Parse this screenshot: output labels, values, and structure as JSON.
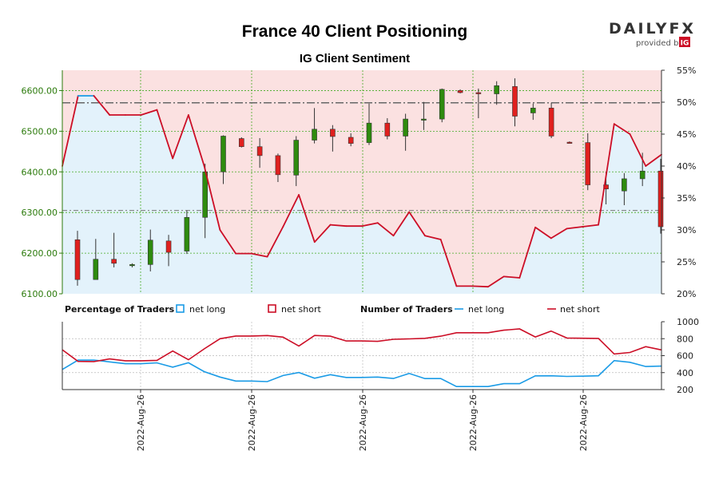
{
  "header": {
    "title": "France 40 Client Positioning",
    "subtitle": "IG Client Sentiment"
  },
  "logo": {
    "brand": "DAILYFX",
    "provided_by": "provided by",
    "ig": "IG"
  },
  "legend": {
    "pct_title": "Percentage of Traders",
    "num_title": "Number of Traders",
    "net_long": "net long",
    "net_short": "net short"
  },
  "colors": {
    "long": "#1a9be6",
    "short": "#cc0e26",
    "bull_candle": "#2e8b0e",
    "bear_candle": "#e0201e",
    "short_zone": "#fbe1e1",
    "long_zone": "#e3f2fb",
    "axis_green": "#2b7a0b",
    "grid_green": "#44aa22"
  },
  "chart_data": [
    {
      "type": "candlestick",
      "title": "France 40 Client Positioning",
      "subtitle": "IG Client Sentiment",
      "y_left": {
        "ylim": [
          6100,
          6650
        ],
        "ticks": [
          "6100.00",
          "6200.00",
          "6300.00",
          "6400.00",
          "6500.00",
          "6600.00"
        ]
      },
      "y_right": {
        "ylim": [
          20,
          55
        ],
        "ticks": [
          "20%",
          "25%",
          "30%",
          "35%",
          "40%",
          "45%",
          "50%",
          "55%"
        ]
      },
      "x_labels": [
        "2022-Aug-26",
        "2022-Aug-26",
        "2022-Aug-26",
        "2022-Aug-26",
        "2022-Aug-26"
      ],
      "reference_levels": {
        "upper_dashed": 6570,
        "lower_dashed": 6305
      },
      "candles": [
        {
          "o": 6233,
          "h": 6255,
          "l": 6120,
          "c": 6135
        },
        {
          "o": 6135,
          "h": 6235,
          "l": 6135,
          "c": 6185
        },
        {
          "o": 6185,
          "h": 6250,
          "l": 6165,
          "c": 6175
        },
        {
          "o": 6170,
          "h": 6175,
          "l": 6165,
          "c": 6172
        },
        {
          "o": 6172,
          "h": 6258,
          "l": 6155,
          "c": 6232
        },
        {
          "o": 6230,
          "h": 6245,
          "l": 6168,
          "c": 6202
        },
        {
          "o": 6205,
          "h": 6305,
          "l": 6198,
          "c": 6288
        },
        {
          "o": 6288,
          "h": 6420,
          "l": 6237,
          "c": 6400
        },
        {
          "o": 6400,
          "h": 6490,
          "l": 6370,
          "c": 6488
        },
        {
          "o": 6482,
          "h": 6485,
          "l": 6460,
          "c": 6462
        },
        {
          "o": 6462,
          "h": 6483,
          "l": 6410,
          "c": 6440
        },
        {
          "o": 6440,
          "h": 6445,
          "l": 6375,
          "c": 6393
        },
        {
          "o": 6392,
          "h": 6488,
          "l": 6365,
          "c": 6478
        },
        {
          "o": 6478,
          "h": 6557,
          "l": 6470,
          "c": 6505
        },
        {
          "o": 6505,
          "h": 6515,
          "l": 6450,
          "c": 6487
        },
        {
          "o": 6485,
          "h": 6495,
          "l": 6463,
          "c": 6470
        },
        {
          "o": 6472,
          "h": 6568,
          "l": 6466,
          "c": 6520
        },
        {
          "o": 6520,
          "h": 6532,
          "l": 6480,
          "c": 6488
        },
        {
          "o": 6488,
          "h": 6543,
          "l": 6452,
          "c": 6530
        },
        {
          "o": 6530,
          "h": 6572,
          "l": 6503,
          "c": 6530
        },
        {
          "o": 6530,
          "h": 6605,
          "l": 6522,
          "c": 6603
        },
        {
          "o": 6600,
          "h": 6603,
          "l": 6593,
          "c": 6595
        },
        {
          "o": 6595,
          "h": 6605,
          "l": 6532,
          "c": 6592
        },
        {
          "o": 6592,
          "h": 6623,
          "l": 6565,
          "c": 6612
        },
        {
          "o": 6610,
          "h": 6630,
          "l": 6512,
          "c": 6537
        },
        {
          "o": 6545,
          "h": 6568,
          "l": 6528,
          "c": 6557
        },
        {
          "o": 6557,
          "h": 6570,
          "l": 6483,
          "c": 6488
        },
        {
          "o": 6473,
          "h": 6475,
          "l": 6470,
          "c": 6472
        },
        {
          "o": 6472,
          "h": 6495,
          "l": 6355,
          "c": 6368
        },
        {
          "o": 6368,
          "h": 6400,
          "l": 6320,
          "c": 6358
        },
        {
          "o": 6353,
          "h": 6397,
          "l": 6318,
          "c": 6383
        },
        {
          "o": 6383,
          "h": 6447,
          "l": 6365,
          "c": 6402
        },
        {
          "o": 6402,
          "h": 6432,
          "l": 6248,
          "c": 6265
        }
      ],
      "net_long_pct": [
        40,
        51,
        51,
        48,
        48,
        48,
        48.8,
        41.2,
        48,
        40,
        30,
        26.3,
        26.3,
        25.8,
        30.5,
        35.5,
        28.1,
        30.8,
        30.6,
        30.6,
        31.1,
        29.1,
        32.8,
        29.1,
        28.5,
        21.2,
        21.2,
        21.1,
        22.7,
        22.5,
        30.4,
        28.7,
        30.2,
        30.5,
        30.8,
        46.6,
        45,
        40,
        41.8
      ]
    },
    {
      "type": "line",
      "title": "Number of Traders",
      "ylim": [
        200,
        1000
      ],
      "y_ticks": [
        "200",
        "400",
        "600",
        "800",
        "1000"
      ],
      "series": [
        {
          "name": "net long",
          "values": [
            437,
            547,
            548,
            527,
            505,
            505,
            515,
            464,
            516,
            412,
            348,
            301,
            301,
            294,
            366,
            401,
            334,
            376,
            343,
            343,
            348,
            331,
            390,
            330,
            330,
            236,
            236,
            236,
            270,
            270,
            362,
            363,
            355,
            358,
            363,
            542,
            522,
            472,
            477
          ]
        },
        {
          "name": "net short",
          "values": [
            670,
            532,
            530,
            561,
            540,
            540,
            544,
            655,
            552,
            680,
            800,
            832,
            832,
            837,
            818,
            714,
            838,
            830,
            773,
            773,
            768,
            793,
            798,
            804,
            830,
            870,
            870,
            870,
            900,
            915,
            820,
            890,
            808,
            805,
            803,
            620,
            638,
            706,
            668
          ]
        }
      ]
    }
  ]
}
